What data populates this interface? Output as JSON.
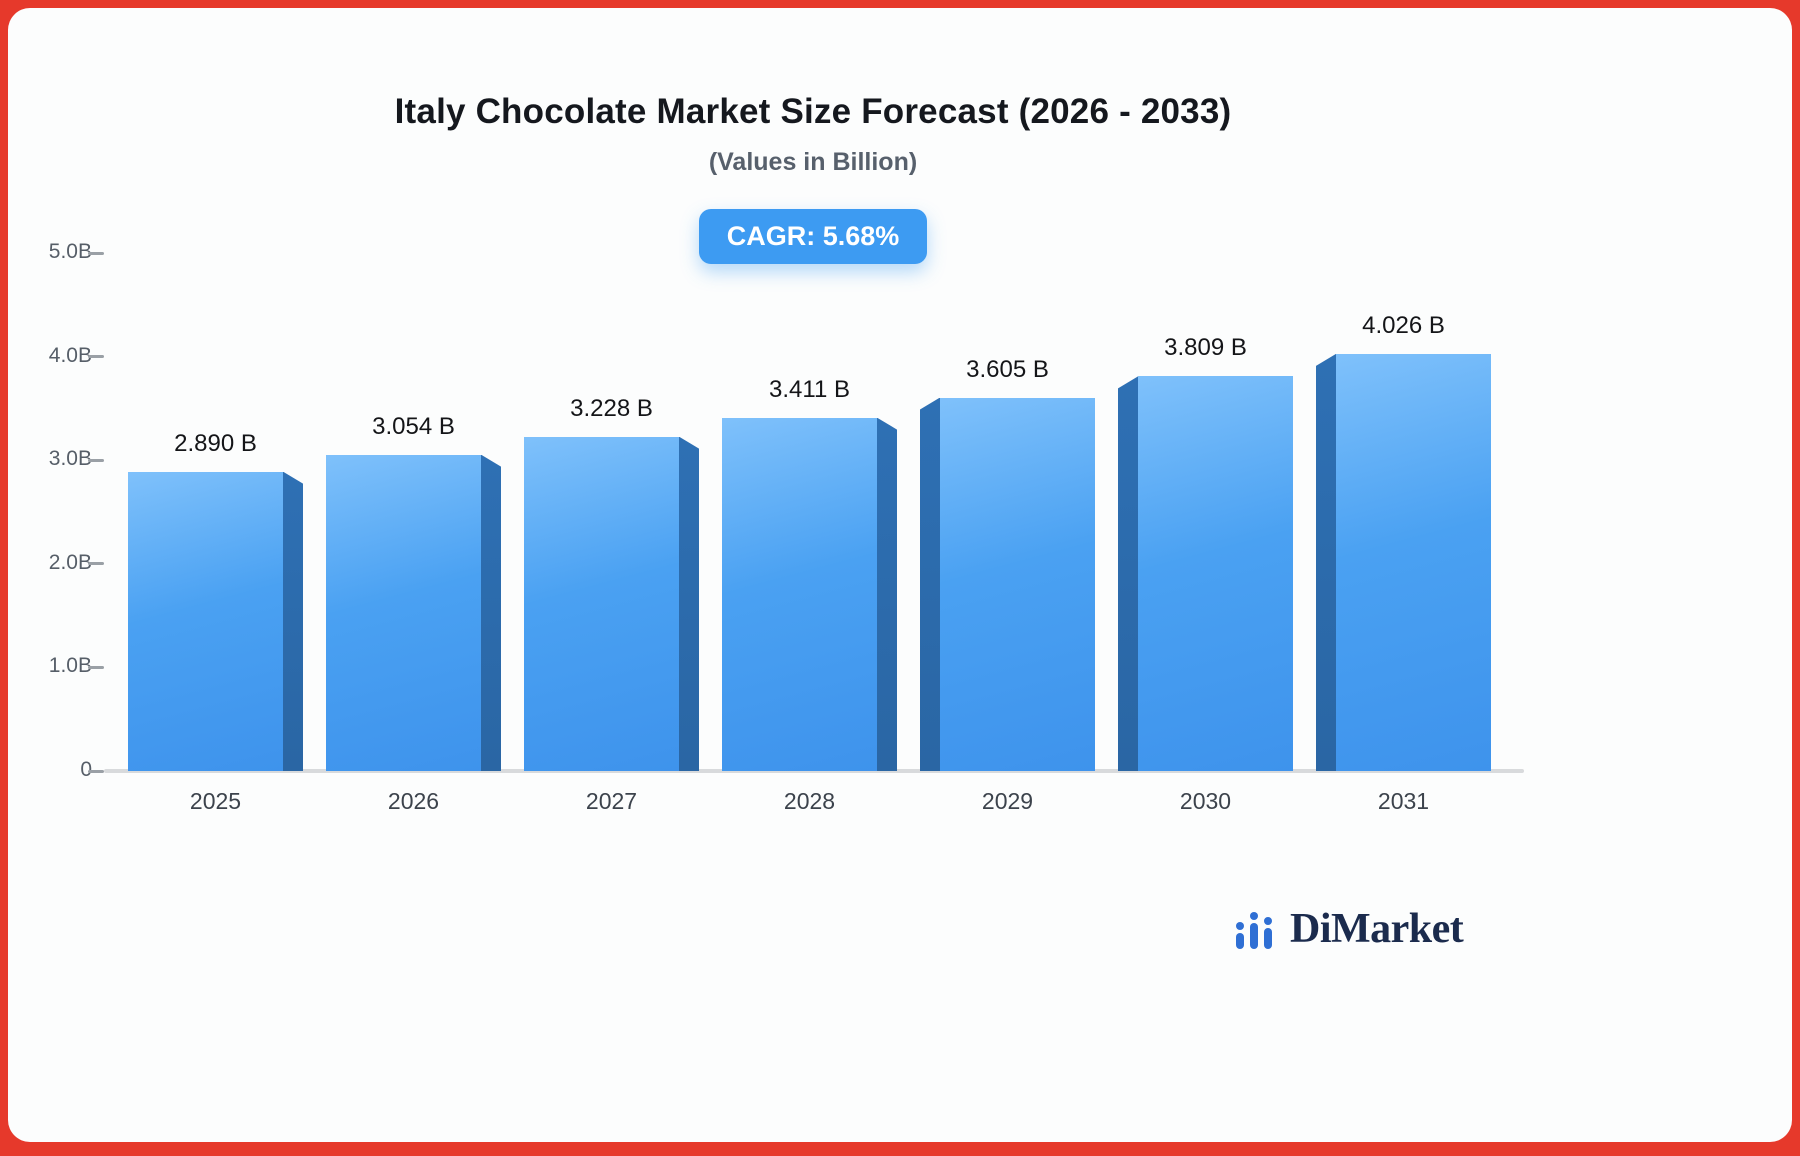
{
  "colors": {
    "frame": "#e6392b",
    "badge": "#3d9bf2",
    "bar_light": "#7fc1fb",
    "bar_mid": "#4aa1f2",
    "bar_main": "#3e93ec",
    "bar_side": "#2e70b4",
    "title": "#15181e",
    "logo": "#1b2b4d",
    "icon": "#2f6fd4"
  },
  "chart_data": {
    "type": "bar",
    "title": "Italy Chocolate Market Size Forecast (2026 - 2033)",
    "subtitle": "(Values in Billion)",
    "cagr_label": "CAGR: 5.68%",
    "categories": [
      "2025",
      "2026",
      "2027",
      "2028",
      "2029",
      "2030",
      "2031"
    ],
    "values": [
      2.89,
      3.054,
      3.228,
      3.411,
      3.605,
      3.809,
      4.026
    ],
    "value_labels": [
      "2.890 B",
      "3.054 B",
      "3.228 B",
      "3.411 B",
      "3.605 B",
      "3.809 B",
      "4.026 B"
    ],
    "yticks": [
      "5.0B",
      "4.0B",
      "3.0B",
      "2.0B",
      "1.0B",
      "0"
    ],
    "ylim": [
      0,
      5
    ],
    "xlabel": "",
    "ylabel": "",
    "grid": false,
    "legend": false
  },
  "branding": {
    "logo_text": "DiMarket",
    "logo_icon": "bar-chart-icon"
  }
}
